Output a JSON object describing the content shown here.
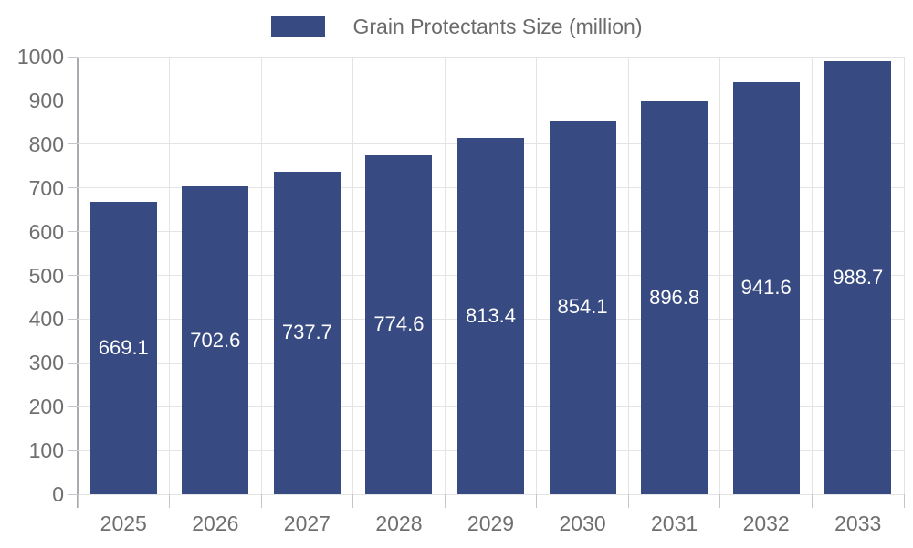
{
  "legend": {
    "label": "Grain Protectants Size (million)"
  },
  "colors": {
    "bar": "#374a81",
    "bar_label": "#ffffff",
    "axis_text": "#6f6f6f",
    "legend_text": "#6b6b6b",
    "gridline": "#e4e4e4",
    "axis_line": "#a9a9b0",
    "tick": "#c6c6ca",
    "background": "#ffffff"
  },
  "chart_data": {
    "type": "bar",
    "title": "Grain Protectants Size (million)",
    "categories": [
      "2025",
      "2026",
      "2027",
      "2028",
      "2029",
      "2030",
      "2031",
      "2032",
      "2033"
    ],
    "values": [
      669.1,
      702.6,
      737.7,
      774.6,
      813.4,
      854.1,
      896.8,
      941.6,
      988.7
    ],
    "bar_labels": [
      "669.1",
      "702.6",
      "737.7",
      "774.6",
      "813.4",
      "854.1",
      "896.8",
      "941.6",
      "988.7"
    ],
    "xlabel": "",
    "ylabel": "",
    "ylim": [
      0,
      1000
    ],
    "ytick_step": 100,
    "ytick_labels": [
      "0",
      "100",
      "200",
      "300",
      "400",
      "500",
      "600",
      "700",
      "800",
      "900",
      "1000"
    ],
    "grid": true,
    "legend_position": "top-center"
  }
}
